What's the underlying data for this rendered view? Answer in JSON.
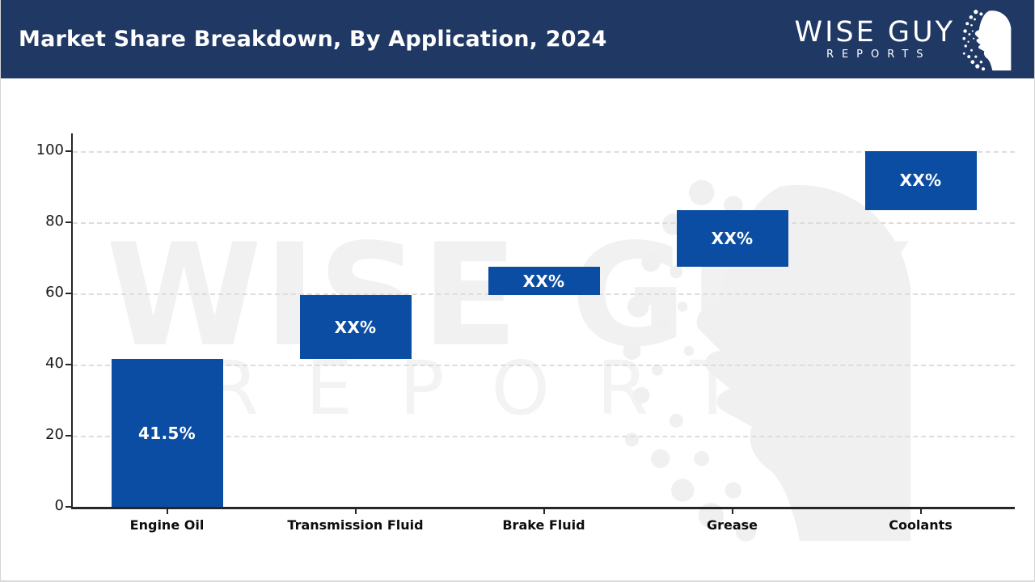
{
  "header": {
    "title": "Market Share Breakdown, By Application, 2024",
    "logo": {
      "line1": "WISE GUY",
      "line2": "REPORTS",
      "line2_spaced": "R E P O R T S"
    }
  },
  "watermark": {
    "line1": "WISE GUY",
    "line2": "REPORTS"
  },
  "chart_data": {
    "type": "bar",
    "subtype": "waterfall",
    "title": "Market Share Breakdown, By Application, 2024",
    "categories": [
      "Engine Oil",
      "Transmission Fluid",
      "Brake Fluid",
      "Grease",
      "Coolants"
    ],
    "segments": [
      {
        "category": "Engine Oil",
        "start": 0,
        "end": 41.5,
        "label": "41.5%"
      },
      {
        "category": "Transmission Fluid",
        "start": 41.5,
        "end": 59.5,
        "label": "XX%"
      },
      {
        "category": "Brake Fluid",
        "start": 59.5,
        "end": 67.5,
        "label": "XX%"
      },
      {
        "category": "Grease",
        "start": 67.5,
        "end": 83.5,
        "label": "XX%"
      },
      {
        "category": "Coolants",
        "start": 83.5,
        "end": 100,
        "label": "XX%"
      }
    ],
    "yticks": [
      0,
      20,
      40,
      60,
      80,
      100
    ],
    "ylim": [
      0,
      105
    ],
    "xlabel": "",
    "ylabel": "",
    "grid": true,
    "legend": false,
    "bar_color": "#0b4da2",
    "bar_label_color": "#ffffff",
    "header_color": "#203864"
  }
}
